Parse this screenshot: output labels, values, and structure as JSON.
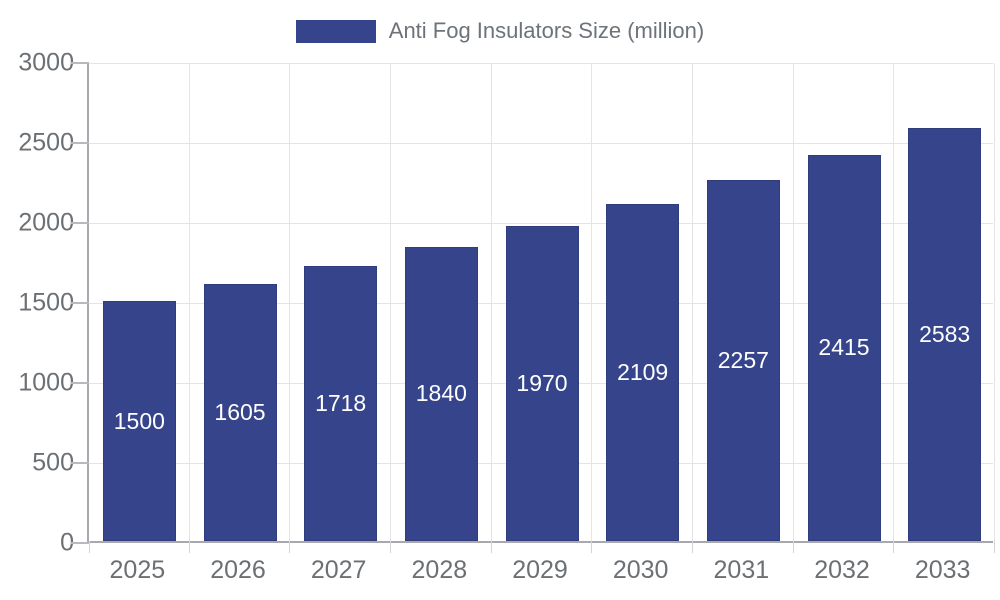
{
  "legend": {
    "label": "Anti Fog Insulators Size (million)"
  },
  "chart_data": {
    "type": "bar",
    "title": "Anti Fog Insulators Size (million)",
    "categories": [
      "2025",
      "2026",
      "2027",
      "2028",
      "2029",
      "2030",
      "2031",
      "2032",
      "2033"
    ],
    "values": [
      1500,
      1605,
      1718,
      1840,
      1970,
      2109,
      2257,
      2415,
      2583
    ],
    "series": [
      {
        "name": "Anti Fog Insulators Size (million)",
        "values": [
          1500,
          1605,
          1718,
          1840,
          1970,
          2109,
          2257,
          2415,
          2583
        ]
      }
    ],
    "xlabel": "",
    "ylabel": "",
    "ylim": [
      0,
      3000
    ],
    "yticks": [
      0,
      500,
      1000,
      1500,
      2000,
      2500,
      3000
    ],
    "grid": true,
    "bar_labels_visible": true,
    "legend_position": "top-center",
    "bar_color": "#36458b",
    "bar_border_color": "#2f3d7d",
    "bar_label_color": "#ffffff",
    "axis_text_color": "#6b7075",
    "legend_text_color": "#6d7378",
    "gridline_color": "#e4e4e7",
    "axis_line_color": "#a8a8ae"
  }
}
